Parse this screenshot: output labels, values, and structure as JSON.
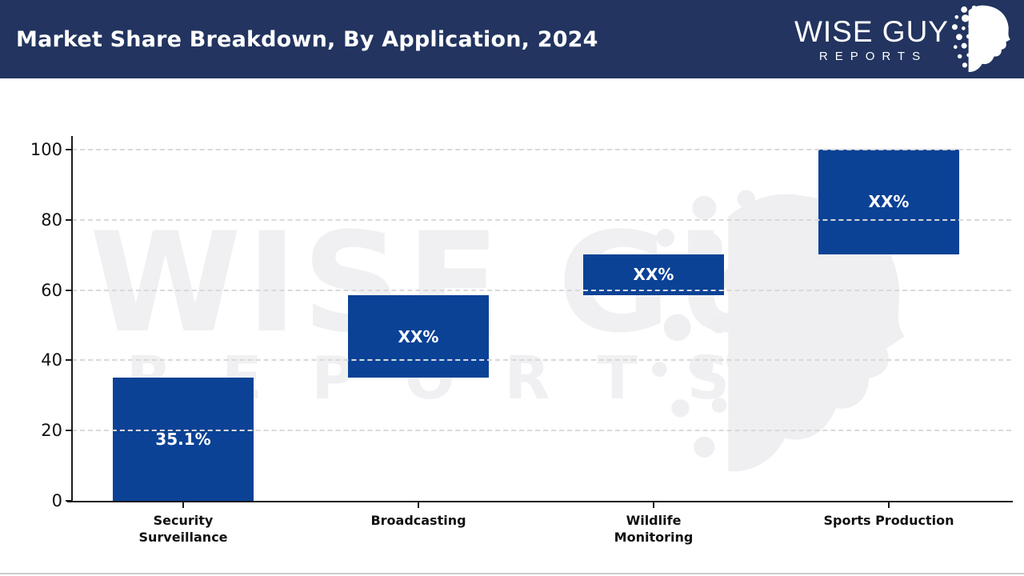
{
  "header": {
    "title": "Market Share Breakdown, By Application, 2024",
    "logo": {
      "line1": "WISE GUY",
      "line2": "REPORTS"
    }
  },
  "watermark": {
    "line1": "WISE GUY",
    "line2": "REPORTS"
  },
  "chart_data": {
    "type": "bar",
    "subtype": "waterfall",
    "title": "Market Share Breakdown, By Application, 2024",
    "categories": [
      "Security\nSurveillance",
      "Broadcasting",
      "Wildlife\nMonitoring",
      "Sports Production"
    ],
    "segments": [
      {
        "category": "Security Surveillance",
        "start": 0,
        "end": 35.1,
        "label": "35.1%"
      },
      {
        "category": "Broadcasting",
        "start": 35.1,
        "end": 58.5,
        "label": "XX%"
      },
      {
        "category": "Wildlife Monitoring",
        "start": 58.5,
        "end": 70.2,
        "label": "XX%"
      },
      {
        "category": "Sports Production",
        "start": 70.2,
        "end": 100,
        "label": "XX%"
      }
    ],
    "y_ticks": [
      0,
      20,
      40,
      60,
      80,
      100
    ],
    "ylim": [
      0,
      104
    ],
    "grid": "horizontal-dashed",
    "legend": "none",
    "xlabel": "",
    "ylabel": ""
  },
  "colors": {
    "header_bg": "#22345f",
    "bar": "#0b4296",
    "bar_label": "#ffffff",
    "axis": "#1a1a1a",
    "grid": "#d9d9d9",
    "watermark": "#f0f0f2",
    "bottom_rule": "#cdcdcd"
  }
}
